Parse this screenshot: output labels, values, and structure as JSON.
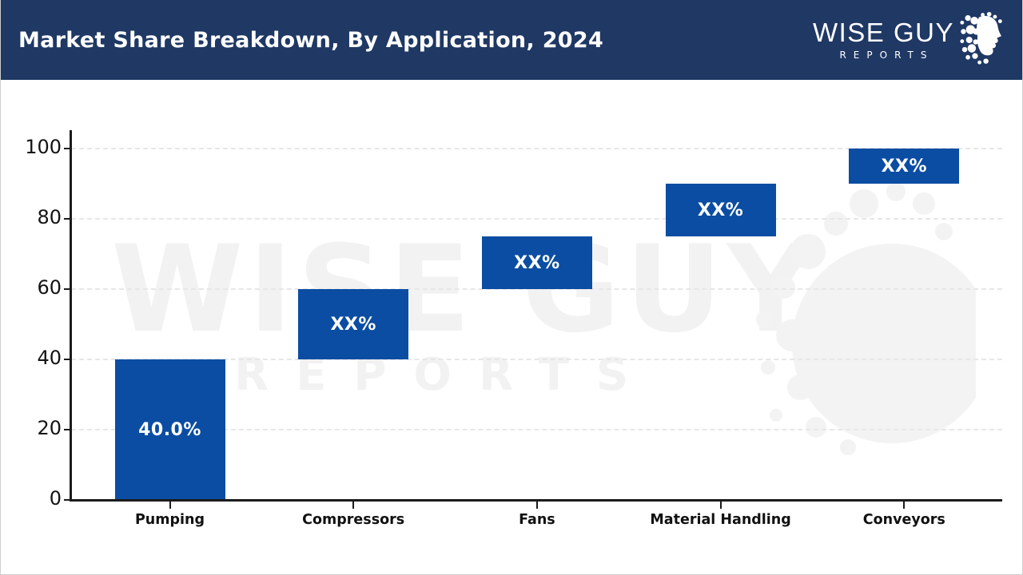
{
  "header": {
    "title": "Market Share Breakdown, By Application, 2024",
    "bg_color": "#1F3864",
    "logo": {
      "line1": "WISE GUY",
      "line2": "REPORTS"
    }
  },
  "watermark": {
    "line1": "WISE GUY",
    "line2": "REPORTS"
  },
  "chart_data": {
    "type": "bar",
    "subtype": "waterfall",
    "title": "Market Share Breakdown, By Application, 2024",
    "categories": [
      "Pumping",
      "Compressors",
      "Fans",
      "Material Handling",
      "Conveyors"
    ],
    "segments": [
      {
        "category": "Pumping",
        "start": 0,
        "end": 40,
        "label": "40.0%"
      },
      {
        "category": "Compressors",
        "start": 40,
        "end": 60,
        "label": "XX%"
      },
      {
        "category": "Fans",
        "start": 60,
        "end": 75,
        "label": "XX%"
      },
      {
        "category": "Material Handling",
        "start": 75,
        "end": 90,
        "label": "XX%"
      },
      {
        "category": "Conveyors",
        "start": 90,
        "end": 100,
        "label": "XX%"
      }
    ],
    "xlabel": "",
    "ylabel": "",
    "ylim": [
      0,
      100
    ],
    "yticks": [
      0,
      20,
      40,
      60,
      80,
      100
    ],
    "grid": "horizontal-dashed",
    "legend": "none",
    "bar_color": "#0B4DA2",
    "label_color": "#FFFFFF",
    "axis_color": "#1B1B1B",
    "gridline_color": "#E7E7E7"
  }
}
